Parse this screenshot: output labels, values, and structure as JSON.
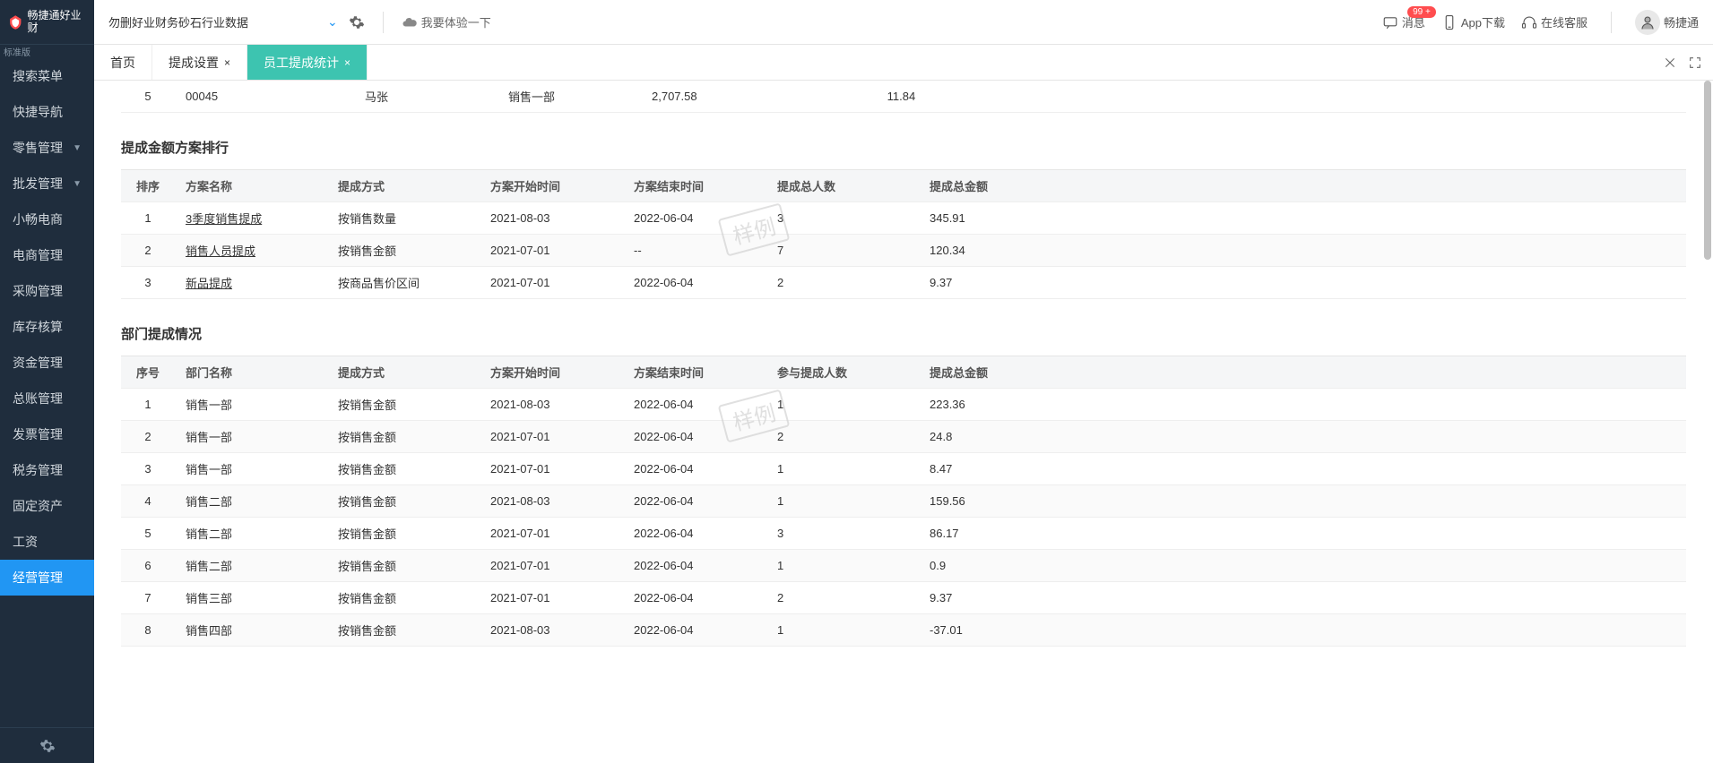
{
  "logo": {
    "brand": "畅捷通好业财",
    "edition": "标准版"
  },
  "sidebar": {
    "items": [
      {
        "label": "搜索菜单",
        "arrow": false
      },
      {
        "label": "快捷导航",
        "arrow": false
      },
      {
        "label": "零售管理",
        "arrow": true
      },
      {
        "label": "批发管理",
        "arrow": true
      },
      {
        "label": "小畅电商",
        "arrow": false
      },
      {
        "label": "电商管理",
        "arrow": false
      },
      {
        "label": "采购管理",
        "arrow": false
      },
      {
        "label": "库存核算",
        "arrow": false
      },
      {
        "label": "资金管理",
        "arrow": false
      },
      {
        "label": "总账管理",
        "arrow": false
      },
      {
        "label": "发票管理",
        "arrow": false
      },
      {
        "label": "税务管理",
        "arrow": false
      },
      {
        "label": "固定资产",
        "arrow": false
      },
      {
        "label": "工资",
        "arrow": false
      },
      {
        "label": "经营管理",
        "arrow": false,
        "active": true
      }
    ]
  },
  "topbar": {
    "dataset": "勿删好业财务砂石行业数据",
    "experience": "我要体验一下",
    "links": {
      "msg": "消息",
      "badge": "99 +",
      "app": "App下载",
      "cs": "在线客服",
      "user": "畅捷通"
    }
  },
  "tabs": [
    {
      "label": "首页",
      "closable": false
    },
    {
      "label": "提成设置",
      "closable": true
    },
    {
      "label": "员工提成统计",
      "closable": true,
      "active": true
    }
  ],
  "topTable": {
    "rows": [
      {
        "rank": "5",
        "code": "00045",
        "name": "马张",
        "dept": "销售一部",
        "amount": "2,707.58",
        "comm": "11.84"
      }
    ]
  },
  "planRank": {
    "title": "提成金额方案排行",
    "columns": [
      "排序",
      "方案名称",
      "提成方式",
      "方案开始时间",
      "方案结束时间",
      "提成总人数",
      "提成总金额"
    ],
    "rows": [
      {
        "rank": "1",
        "name": "3季度销售提成",
        "method": "按销售数量",
        "start": "2021-08-03",
        "end": "2022-06-04",
        "people": "3",
        "amount": "345.91"
      },
      {
        "rank": "2",
        "name": "销售人员提成",
        "method": "按销售金额",
        "start": "2021-07-01",
        "end": "--",
        "people": "7",
        "amount": "120.34"
      },
      {
        "rank": "3",
        "name": "新品提成",
        "method": "按商品售价区间",
        "start": "2021-07-01",
        "end": "2022-06-04",
        "people": "2",
        "amount": "9.37"
      }
    ]
  },
  "deptRank": {
    "title": "部门提成情况",
    "columns": [
      "序号",
      "部门名称",
      "提成方式",
      "方案开始时间",
      "方案结束时间",
      "参与提成人数",
      "提成总金额"
    ],
    "rows": [
      {
        "idx": "1",
        "dept": "销售一部",
        "method": "按销售金额",
        "start": "2021-08-03",
        "end": "2022-06-04",
        "people": "1",
        "amount": "223.36"
      },
      {
        "idx": "2",
        "dept": "销售一部",
        "method": "按销售金额",
        "start": "2021-07-01",
        "end": "2022-06-04",
        "people": "2",
        "amount": "24.8"
      },
      {
        "idx": "3",
        "dept": "销售一部",
        "method": "按销售金额",
        "start": "2021-07-01",
        "end": "2022-06-04",
        "people": "1",
        "amount": "8.47"
      },
      {
        "idx": "4",
        "dept": "销售二部",
        "method": "按销售金额",
        "start": "2021-08-03",
        "end": "2022-06-04",
        "people": "1",
        "amount": "159.56"
      },
      {
        "idx": "5",
        "dept": "销售二部",
        "method": "按销售金额",
        "start": "2021-07-01",
        "end": "2022-06-04",
        "people": "3",
        "amount": "86.17"
      },
      {
        "idx": "6",
        "dept": "销售二部",
        "method": "按销售金额",
        "start": "2021-07-01",
        "end": "2022-06-04",
        "people": "1",
        "amount": "0.9"
      },
      {
        "idx": "7",
        "dept": "销售三部",
        "method": "按销售金额",
        "start": "2021-07-01",
        "end": "2022-06-04",
        "people": "2",
        "amount": "9.37"
      },
      {
        "idx": "8",
        "dept": "销售四部",
        "method": "按销售金额",
        "start": "2021-08-03",
        "end": "2022-06-04",
        "people": "1",
        "amount": "-37.01"
      }
    ]
  },
  "watermark": "样例",
  "colors": {
    "sidebar_bg": "#1f2d3d",
    "active_blue": "#2196f3",
    "tab_green": "#3dc4b0",
    "badge_red": "#ff4d4f",
    "border": "#e5e5e5",
    "header_bg": "#f5f6f7"
  }
}
